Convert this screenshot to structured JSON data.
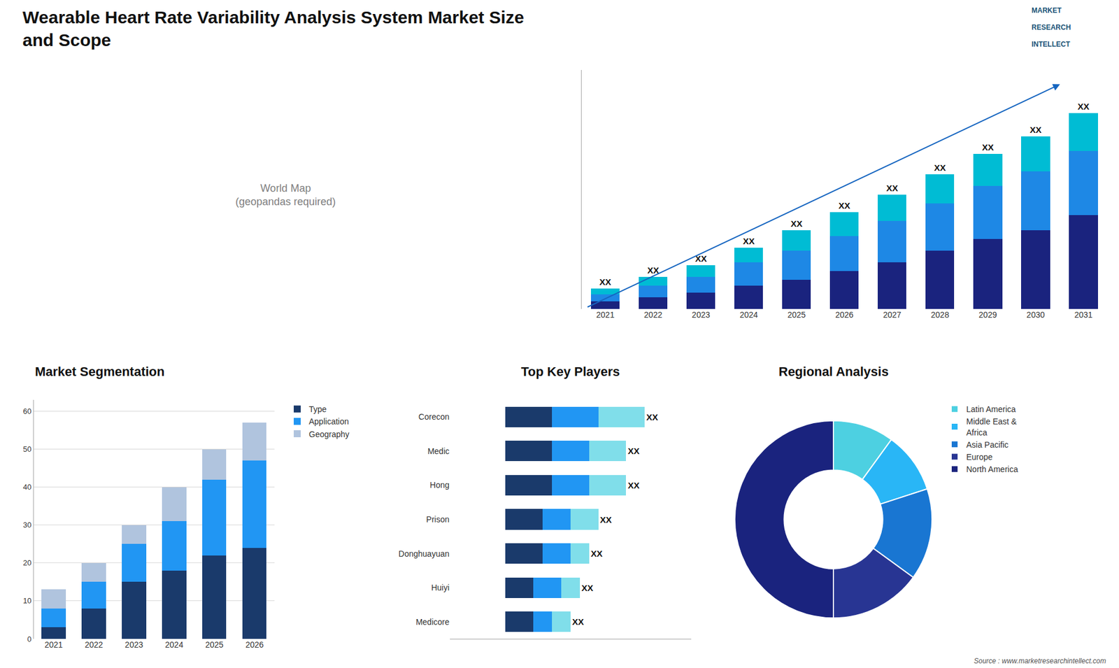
{
  "title": "Wearable Heart Rate Variability Analysis System Market Size\nand Scope",
  "annotations": [
    "MARKET",
    "RESEARCH",
    "INTELLECT",
    "World Map\n(geopandas required)",
    "Source : www.marketresearchintellect.com"
  ],
  "chart_data": [
    {
      "type": "bar",
      "stacked": true,
      "categories": [
        "2021",
        "2022",
        "2023",
        "2024",
        "2025",
        "2026",
        "2027",
        "2028",
        "2029",
        "2030",
        "2031"
      ],
      "series": [
        {
          "color": "#1a237e",
          "values": [
            2.5,
            4,
            5.5,
            8,
            10,
            13,
            16,
            20,
            24,
            27,
            32
          ]
        },
        {
          "color": "#1e88e5",
          "values": [
            2.5,
            4,
            5.5,
            8,
            10,
            12,
            14,
            16,
            18,
            20,
            22
          ]
        },
        {
          "color": "#00bcd4",
          "values": [
            2,
            3,
            4,
            5,
            7,
            8,
            9,
            10,
            11,
            12,
            13
          ],
          "value_labels": [
            "XX",
            "XX",
            "XX",
            "XX",
            "XX",
            "XX",
            "XX",
            "XX",
            "XX",
            "XX",
            "XX"
          ]
        }
      ],
      "ylim": [
        0,
        81.74
      ],
      "tick_labels": "x",
      "grid": false
    },
    {
      "type": "bar",
      "title": "Market Segmentation",
      "stacked": true,
      "categories": [
        "2021",
        "2022",
        "2023",
        "2024",
        "2025",
        "2026"
      ],
      "series": [
        {
          "name": "Type",
          "color": "#1a3a6b",
          "values": [
            3,
            8,
            15,
            18,
            22,
            24
          ]
        },
        {
          "name": "Application",
          "color": "#2196f3",
          "values": [
            5,
            7,
            10,
            13,
            20,
            23
          ]
        },
        {
          "name": "Geography",
          "color": "#b0c4de",
          "values": [
            5,
            5,
            5,
            9,
            8,
            10
          ]
        }
      ],
      "ylim": [
        0,
        63
      ],
      "yticks": [
        0,
        10,
        20,
        30,
        40,
        50,
        60
      ],
      "grid": true,
      "legend": "right"
    },
    {
      "type": "bar",
      "title": "Top Key Players",
      "orientation": "horizontal",
      "stacked": true,
      "categories": [
        "Corecon",
        "Medic",
        "Hong",
        "Prison",
        "Donghuayuan",
        "Huiyi",
        "Medicore"
      ],
      "series": [
        {
          "color": "#1a3a6b",
          "values": [
            5,
            5,
            5,
            4,
            4,
            3,
            3
          ]
        },
        {
          "color": "#2196f3",
          "values": [
            5,
            4,
            4,
            3,
            3,
            3,
            2
          ]
        },
        {
          "color": "#80deea",
          "values": [
            5,
            4,
            4,
            3,
            2,
            2,
            2
          ],
          "value_labels": [
            "XX",
            "XX",
            "XX",
            "XX",
            "XX",
            "XX",
            "XX"
          ]
        }
      ],
      "xlim": [
        -6,
        20
      ],
      "tick_labels": "y",
      "grid": false
    },
    {
      "type": "pie",
      "title": "Regional Analysis",
      "categories": [
        "Latin America",
        "Middle East &\nAfrica",
        "Asia Pacific",
        "Europe",
        "North America"
      ],
      "values": [
        10,
        10,
        15,
        15,
        50
      ],
      "colors": [
        "#4dd0e1",
        "#29b6f6",
        "#1976d2",
        "#283593",
        "#1a237e"
      ],
      "legend": "right"
    }
  ]
}
